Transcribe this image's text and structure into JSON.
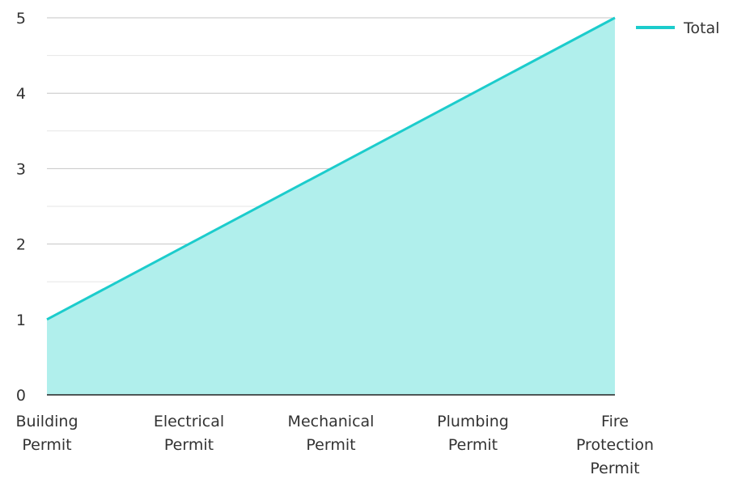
{
  "chart_data": {
    "type": "area",
    "title": "",
    "xlabel": "",
    "ylabel": "",
    "categories": [
      [
        "Building",
        "Permit"
      ],
      [
        "Electrical",
        "Permit"
      ],
      [
        "Mechanical",
        "Permit"
      ],
      [
        "Plumbing",
        "Permit"
      ],
      [
        "Fire",
        "Protection",
        "Permit"
      ]
    ],
    "series": [
      {
        "name": "Total",
        "values": [
          1,
          2,
          3,
          4,
          5
        ],
        "color": "#1ccccc",
        "fill": "#b0efec"
      }
    ],
    "ylim": [
      0,
      5
    ],
    "yticks": [
      0,
      1,
      2,
      3,
      4,
      5
    ],
    "grid": true,
    "legend": "top-right"
  }
}
